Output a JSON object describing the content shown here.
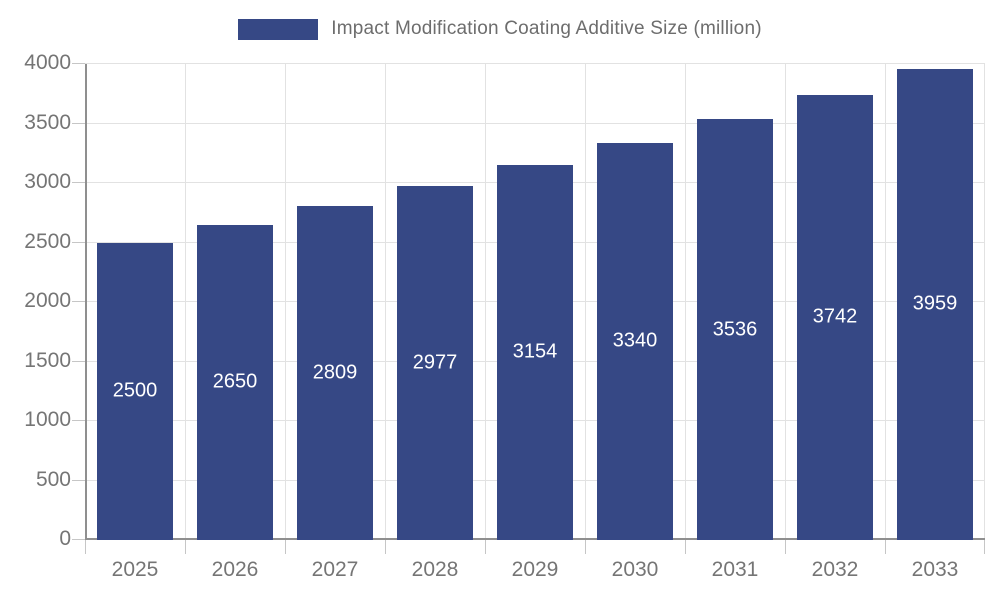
{
  "chart_data": {
    "type": "bar",
    "title": "Impact Modification Coating Additive Size (million)",
    "categories": [
      "2025",
      "2026",
      "2027",
      "2028",
      "2029",
      "2030",
      "2031",
      "2032",
      "2033"
    ],
    "values": [
      2500,
      2650,
      2809,
      2977,
      3154,
      3340,
      3536,
      3742,
      3959
    ],
    "xlabel": "",
    "ylabel": "",
    "ylim": [
      0,
      4000
    ],
    "yticks": [
      0,
      500,
      1000,
      1500,
      2000,
      2500,
      3000,
      3500,
      4000
    ],
    "grid": true,
    "legend_position": "top-center",
    "bar_color": "#364885",
    "value_label_color": "#ffffff"
  }
}
